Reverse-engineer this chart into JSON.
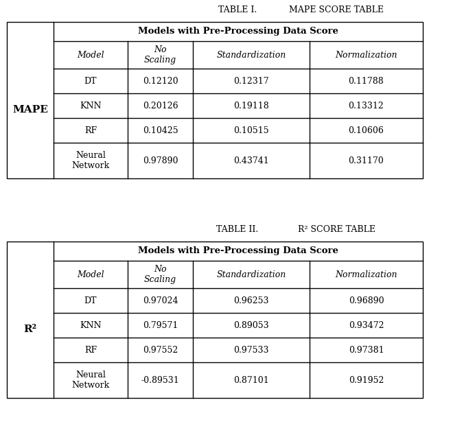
{
  "table1_title": "TABLE I.",
  "table1_subtitle": "MAPE SCORE TABLE",
  "table1_header": "Models with Pre-Processing Data Score",
  "table1_col_headers": [
    "Model",
    "No\nScaling",
    "Standardization",
    "Normalization"
  ],
  "table1_row_label": "MAPE",
  "table1_rows": [
    [
      "DT",
      "0.12120",
      "0.12317",
      "0.11788"
    ],
    [
      "KNN",
      "0.20126",
      "0.19118",
      "0.13312"
    ],
    [
      "RF",
      "0.10425",
      "0.10515",
      "0.10606"
    ],
    [
      "Neural\nNetwork",
      "0.97890",
      "0.43741",
      "0.31170"
    ]
  ],
  "table2_title": "TABLE II.",
  "table2_subtitle": "R² SCORE TABLE",
  "table2_header": "Models with Pre-Processing Data Score",
  "table2_col_headers": [
    "Model",
    "No\nScaling",
    "Standardization",
    "Normalization"
  ],
  "table2_row_label": "R²",
  "table2_rows": [
    [
      "DT",
      "0.97024",
      "0.96253",
      "0.96890"
    ],
    [
      "KNN",
      "0.79571",
      "0.89053",
      "0.93472"
    ],
    [
      "RF",
      "0.97552",
      "0.97533",
      "0.97381"
    ],
    [
      "Neural\nNetwork",
      "-0.89531",
      "0.87101",
      "0.91952"
    ]
  ],
  "bg_color": "#ffffff"
}
